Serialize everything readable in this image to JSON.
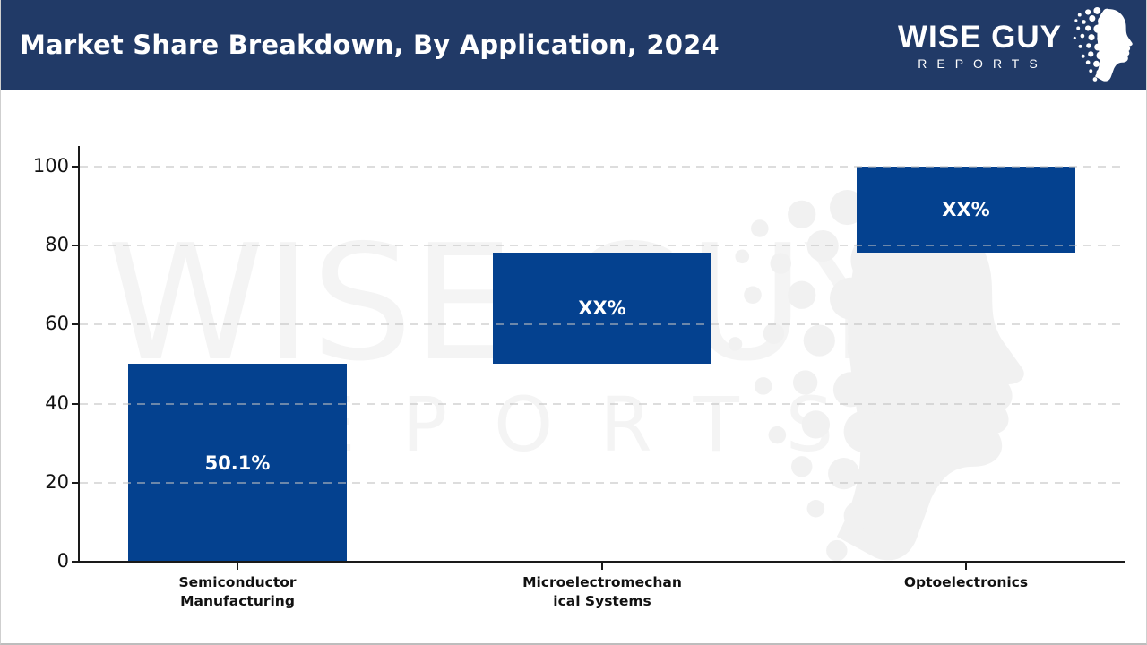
{
  "header": {
    "title": "Market Share Breakdown, By Application, 2024",
    "logo": {
      "wordmark": "WISE GUY",
      "subtext": "REPORTS"
    }
  },
  "watermark": {
    "line1": "WISE GUY",
    "line2": "REPORTS"
  },
  "colors": {
    "header_bg": "#213a67",
    "bar_fill": "#04418f",
    "bar_label_text": "#ffffff",
    "axis": "#1a1a1a",
    "tick_label": "#111111",
    "grid_dash": "#c1c1c1",
    "watermark": "#f4f4f4"
  },
  "chart_data": {
    "type": "bar",
    "subtype": "floating-waterfall",
    "title": "Market Share Breakdown, By Application, 2024",
    "categories": [
      "Semiconductor Manufacturing",
      "Microelectromechanical Systems",
      "Optoelectronics"
    ],
    "category_display_lines": [
      [
        "Semiconductor",
        "Manufacturing"
      ],
      [
        "Microelectromechan",
        "ical Systems"
      ],
      [
        "Optoelectronics"
      ]
    ],
    "segments": [
      {
        "category": "Semiconductor Manufacturing",
        "start": 0,
        "end": 50.1,
        "label": "50.1%"
      },
      {
        "category": "Microelectromechanical Systems",
        "start": 50.1,
        "end": 78.3,
        "label": "XX%"
      },
      {
        "category": "Optoelectronics",
        "start": 78.3,
        "end": 100,
        "label": "XX%"
      }
    ],
    "yticks": [
      0,
      20,
      40,
      60,
      80,
      100
    ],
    "ylim": [
      0,
      105
    ],
    "xlabel": "",
    "ylabel": "",
    "grid": "horizontal-dashed-overlay",
    "legend": "none"
  }
}
